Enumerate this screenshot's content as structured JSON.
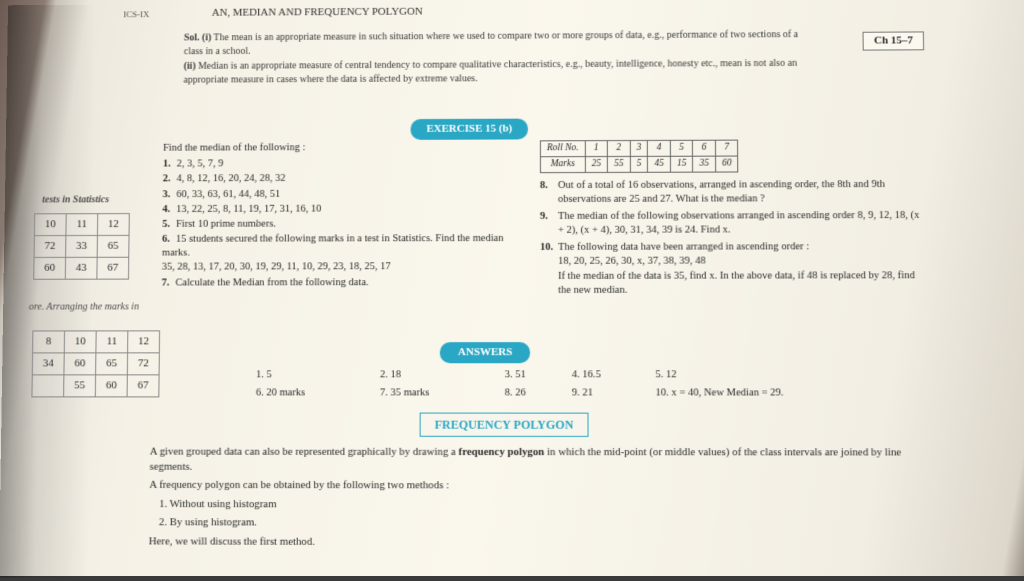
{
  "colors": {
    "accent": "#2aa7c4",
    "text": "#2a2a2a",
    "paper": "#f5f1e6",
    "border": "#666"
  },
  "typography": {
    "body_family": "Georgia/Times",
    "body_size_pt": 10.5,
    "badge_size_pt": 11,
    "heading_size_pt": 12
  },
  "header": {
    "tab": "ICS-IX",
    "title": "AN, MEDIAN AND FREQUENCY POLYGON",
    "chapter": "Ch 15–7"
  },
  "sol": {
    "i_lbl": "Sol. (i)",
    "i_text": "The mean is an appropriate measure in such situation where we used to compare two or more groups of data, e.g., performance of two sections of a class in a school.",
    "ii_lbl": "(ii)",
    "ii_text": "Median is an appropriate measure of central tendency to compare qualitative characteristics, e.g., beauty, intelligence, honesty etc., mean is not also an appropriate measure in cases where the data is affected by extreme values."
  },
  "exercise_badge": "EXERCISE 15 (b)",
  "left": {
    "heading": "Find the median of the following :",
    "items": [
      "2, 3, 5, 7, 9",
      "4, 8, 12, 16, 20, 24, 28, 32",
      "60, 33, 63, 61, 44, 48, 51",
      "13, 22, 25, 8, 11, 19, 17, 31, 16, 10",
      "First 10 prime numbers.",
      "15 students secured the following marks in a test in Statistics. Find the median marks.\n35, 28, 13, 17, 20, 30, 19, 29, 11, 10, 29, 23, 18, 25, 17",
      "Calculate the Median from the following data."
    ],
    "nums": [
      "1.",
      "2.",
      "3.",
      "4.",
      "5.",
      "6.",
      "7."
    ]
  },
  "roll_table": {
    "headers": [
      "Roll No.",
      "1",
      "2",
      "3",
      "4",
      "5",
      "6",
      "7"
    ],
    "row_label": "Marks",
    "row": [
      "25",
      "55",
      "5",
      "45",
      "15",
      "35",
      "60"
    ]
  },
  "right": {
    "items": [
      {
        "n": "8.",
        "t": "Out of a total of 16 observations, arranged in ascending order, the 8th and 9th observations are 25 and 27. What is the median ?"
      },
      {
        "n": "9.",
        "t": "The median of the following observations arranged in ascending order 8, 9, 12, 18, (x + 2), (x + 4), 30, 31, 34, 39 is 24. Find x."
      },
      {
        "n": "10.",
        "t": "The following data have been arranged in ascending order :\n18, 20, 25, 26, 30, x, 37, 38, 39, 48\nIf the median of the data is 35, find x. In the above data, if 48 is replaced by 28, find the new median."
      }
    ]
  },
  "side_label": "tests in Statistics",
  "side_table1": {
    "rows": [
      [
        "10",
        "11",
        "12"
      ],
      [
        "72",
        "33",
        "65"
      ],
      [
        "60",
        "43",
        "67"
      ]
    ]
  },
  "arr_label": "ore. Arranging the marks in",
  "side_table2": {
    "rows": [
      [
        "8",
        "10",
        "11",
        "12"
      ],
      [
        "34",
        "60",
        "65",
        "72"
      ],
      [
        "",
        "55",
        "60",
        "67"
      ]
    ]
  },
  "answers_badge": "ANSWERS",
  "answers": {
    "row1": [
      "1. 5",
      "2. 18",
      "3. 51",
      "4. 16.5",
      "5. 12"
    ],
    "row2": [
      "6. 20 marks",
      "7. 35 marks",
      "8. 26",
      "9. 21",
      "10. x = 40,  New Median = 29."
    ]
  },
  "freq_box": "FREQUENCY POLYGON",
  "freq_body": {
    "p1_a": "A given grouped data can also be represented graphically by drawing a ",
    "p1_b": "frequency polygon",
    "p1_c": " in which the mid-point (or middle values) of the class intervals are joined by line segments.",
    "p2": "A frequency polygon can be obtained by the following two methods :",
    "m1": "1. Without using histogram",
    "m2": "2. By using histogram.",
    "p3": "Here, we will discuss the first method."
  }
}
